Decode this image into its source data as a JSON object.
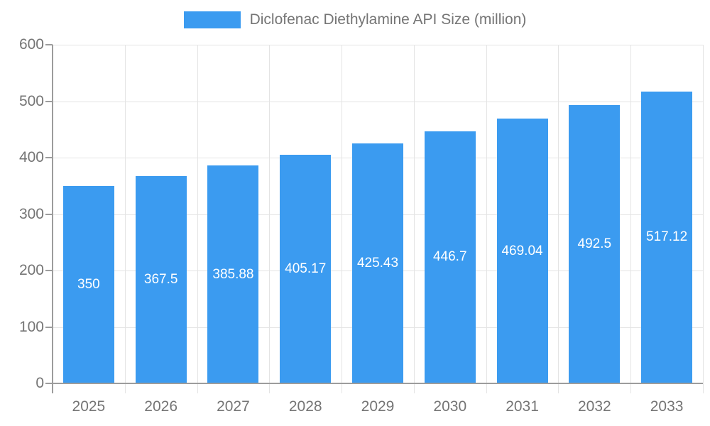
{
  "legend": {
    "label": "Diclofenac Diethylamine API Size (million)"
  },
  "chart_data": {
    "type": "bar",
    "title": "Diclofenac Diethylamine API Size (million)",
    "categories": [
      "2025",
      "2026",
      "2027",
      "2028",
      "2029",
      "2030",
      "2031",
      "2032",
      "2033"
    ],
    "values": [
      350,
      367.5,
      385.88,
      405.17,
      425.43,
      446.7,
      469.04,
      492.5,
      517.12
    ],
    "value_labels": [
      "350",
      "367.5",
      "385.88",
      "405.17",
      "425.43",
      "446.7",
      "469.04",
      "492.5",
      "517.12"
    ],
    "xlabel": "",
    "ylabel": "",
    "ylim": [
      0,
      600
    ],
    "ytick_step": 100,
    "ytick_labels": [
      "0",
      "100",
      "200",
      "300",
      "400",
      "500",
      "600"
    ],
    "grid": true,
    "legend_position": "top-center",
    "colors": {
      "bar": "#3b9bf0",
      "grid": "#e4e4e4",
      "axis": "#9c9c9c",
      "tick_label": "#757575",
      "value_label": "#ffffff"
    }
  }
}
